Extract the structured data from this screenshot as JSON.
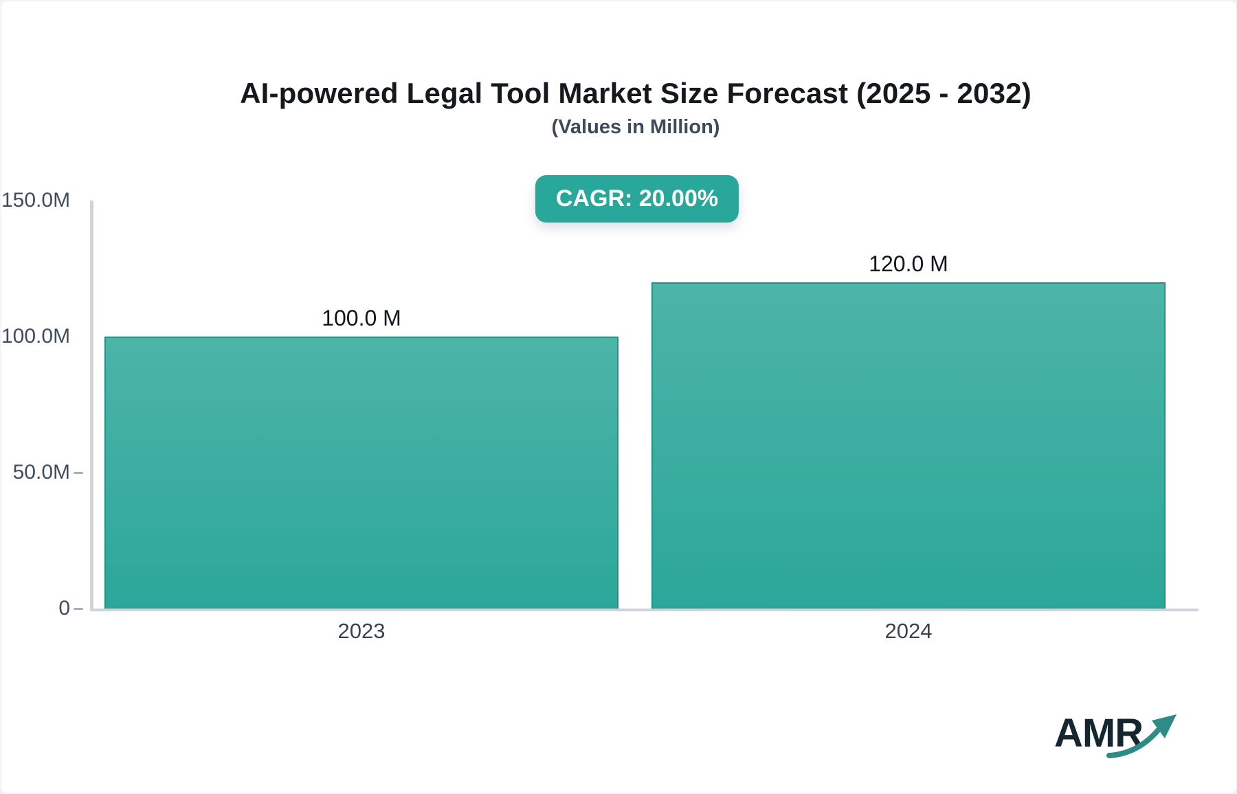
{
  "title": "AI-powered Legal Tool Market Size Forecast (2025 - 2032)",
  "subtitle": "(Values in Million)",
  "cagr_badge": "CAGR: 20.00%",
  "logo": {
    "text": "AMR"
  },
  "colors": {
    "bar_fill_top": "#4DB4A8",
    "bar_fill_bottom": "#2BA79A",
    "bar_border": "#1E9388",
    "badge_bg": "#2AA79B",
    "axis_line": "#D1D3DB",
    "tick_text": "#3F4C5E",
    "value_text": "#10151C",
    "title_text": "#15191E",
    "subtitle_text": "#3D4A5C",
    "logo_text": "#142630",
    "logo_arrow": "#2E8B85"
  },
  "chart_data": {
    "type": "bar",
    "title": "AI-powered Legal Tool Market Size Forecast (2025 - 2032)",
    "subtitle": "(Values in Million)",
    "annotation": "CAGR: 20.00%",
    "categories": [
      "2023",
      "2024"
    ],
    "values": [
      100.0,
      120.0
    ],
    "value_labels": [
      "100.0 M",
      "120.0 M"
    ],
    "xlabel": "",
    "ylabel": "",
    "ylim": [
      0,
      150
    ],
    "unit": "Million",
    "grid": false,
    "legend": false,
    "yticks": [
      {
        "label": "150.0M",
        "value": 150,
        "dash": false
      },
      {
        "label": "100.0M",
        "value": 100,
        "dash": false
      },
      {
        "label": "50.0M",
        "value": 50,
        "dash": true
      },
      {
        "label": "0",
        "value": 0,
        "dash": true
      }
    ]
  }
}
